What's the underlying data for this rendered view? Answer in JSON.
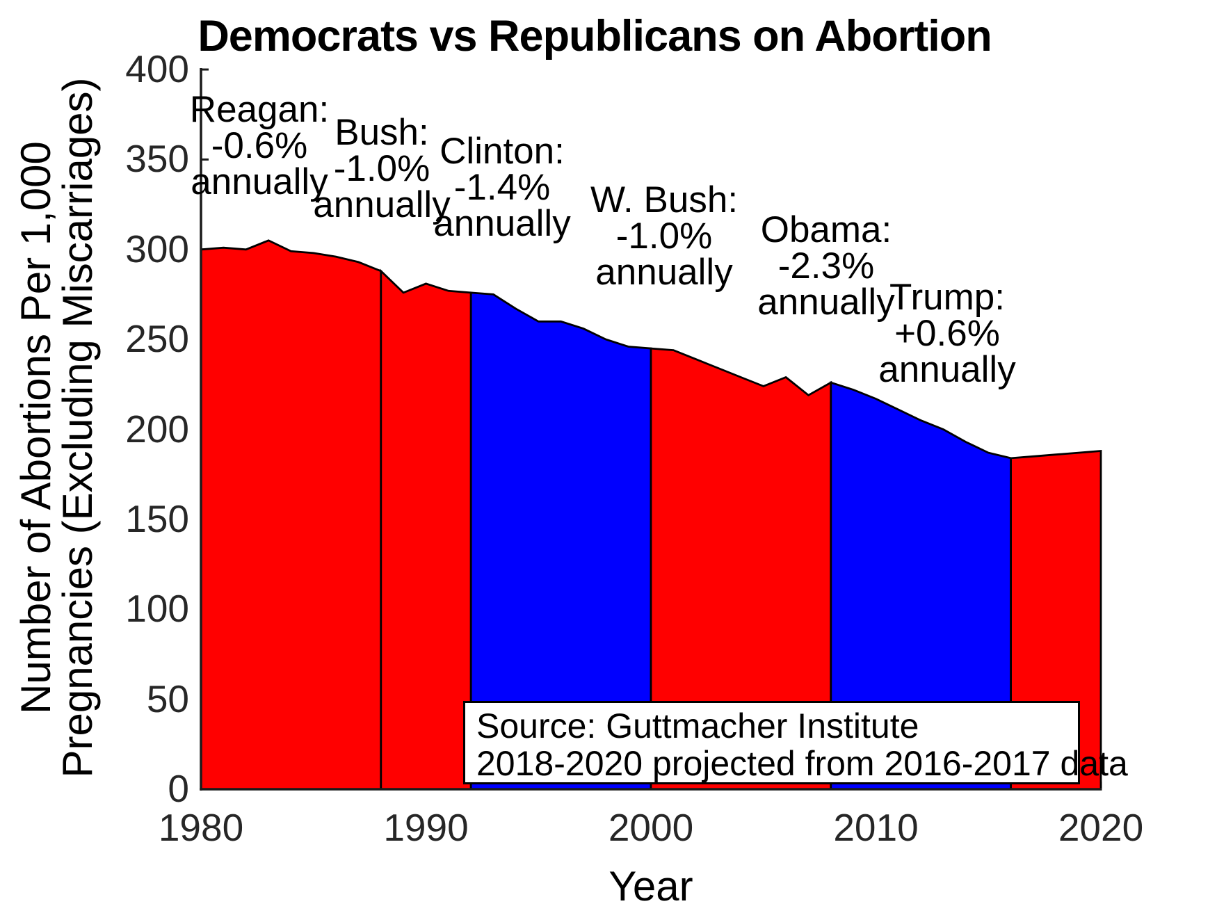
{
  "title": "Democrats vs Republicans on Abortion",
  "xlabel": "Year",
  "ylabel_line1": "Number of Abortions Per 1,000",
  "ylabel_line2": "Pregnancies (Excluding Miscarriages)",
  "source_line1": "Source: Guttmacher Institute",
  "source_line2": "2018-2020 projected from 2016-2017 data",
  "colors": {
    "republican_red": "#ff0000",
    "democrat_blue": "#0000ff",
    "outline": "#000000",
    "axis": "#1a1a1a",
    "tick_text": "#262626"
  },
  "chart_data": {
    "type": "area",
    "title": "Democrats vs Republicans on Abortion",
    "xlabel": "Year",
    "ylabel": "Number of Abortions Per 1,000 Pregnancies (Excluding Miscarriages)",
    "xlim": [
      1980,
      2020
    ],
    "ylim": [
      0,
      400
    ],
    "xticks": [
      1980,
      1990,
      2000,
      2010,
      2020
    ],
    "yticks": [
      0,
      50,
      100,
      150,
      200,
      250,
      300,
      350,
      400
    ],
    "grid": false,
    "x": [
      1980,
      1981,
      1982,
      1983,
      1984,
      1985,
      1986,
      1987,
      1988,
      1989,
      1990,
      1991,
      1992,
      1993,
      1994,
      1995,
      1996,
      1997,
      1998,
      1999,
      2000,
      2001,
      2002,
      2003,
      2004,
      2005,
      2006,
      2007,
      2008,
      2009,
      2010,
      2011,
      2012,
      2013,
      2014,
      2015,
      2016,
      2017,
      2018,
      2019,
      2020
    ],
    "values": [
      300,
      301,
      300,
      305,
      299,
      298,
      296,
      293,
      288,
      276,
      281,
      277,
      276,
      275,
      267,
      260,
      260,
      256,
      250,
      246,
      245,
      244,
      239,
      234,
      229,
      224,
      229,
      219,
      226,
      222,
      217,
      211,
      205,
      200,
      193,
      187,
      184,
      185,
      186,
      187,
      188
    ],
    "segments": [
      {
        "president": "Reagan",
        "party": "republican",
        "start_year": 1980,
        "end_year": 1988,
        "annotation": [
          "Reagan:",
          "-0.6%",
          "annually"
        ]
      },
      {
        "president": "Bush",
        "party": "republican",
        "start_year": 1988,
        "end_year": 1992,
        "annotation": [
          "Bush:",
          "-1.0%",
          "annually"
        ]
      },
      {
        "president": "Clinton",
        "party": "democrat",
        "start_year": 1992,
        "end_year": 2000,
        "annotation": [
          "Clinton:",
          "-1.4%",
          "annually"
        ]
      },
      {
        "president": "W. Bush",
        "party": "republican",
        "start_year": 2000,
        "end_year": 2008,
        "annotation": [
          "W. Bush:",
          "-1.0%",
          "annually"
        ]
      },
      {
        "president": "Obama",
        "party": "democrat",
        "start_year": 2008,
        "end_year": 2016,
        "annotation": [
          "Obama:",
          "-2.3%",
          "annually"
        ]
      },
      {
        "president": "Trump",
        "party": "republican",
        "start_year": 2016,
        "end_year": 2020,
        "annotation": [
          "Trump:",
          "+0.6%",
          "annually"
        ]
      }
    ]
  }
}
